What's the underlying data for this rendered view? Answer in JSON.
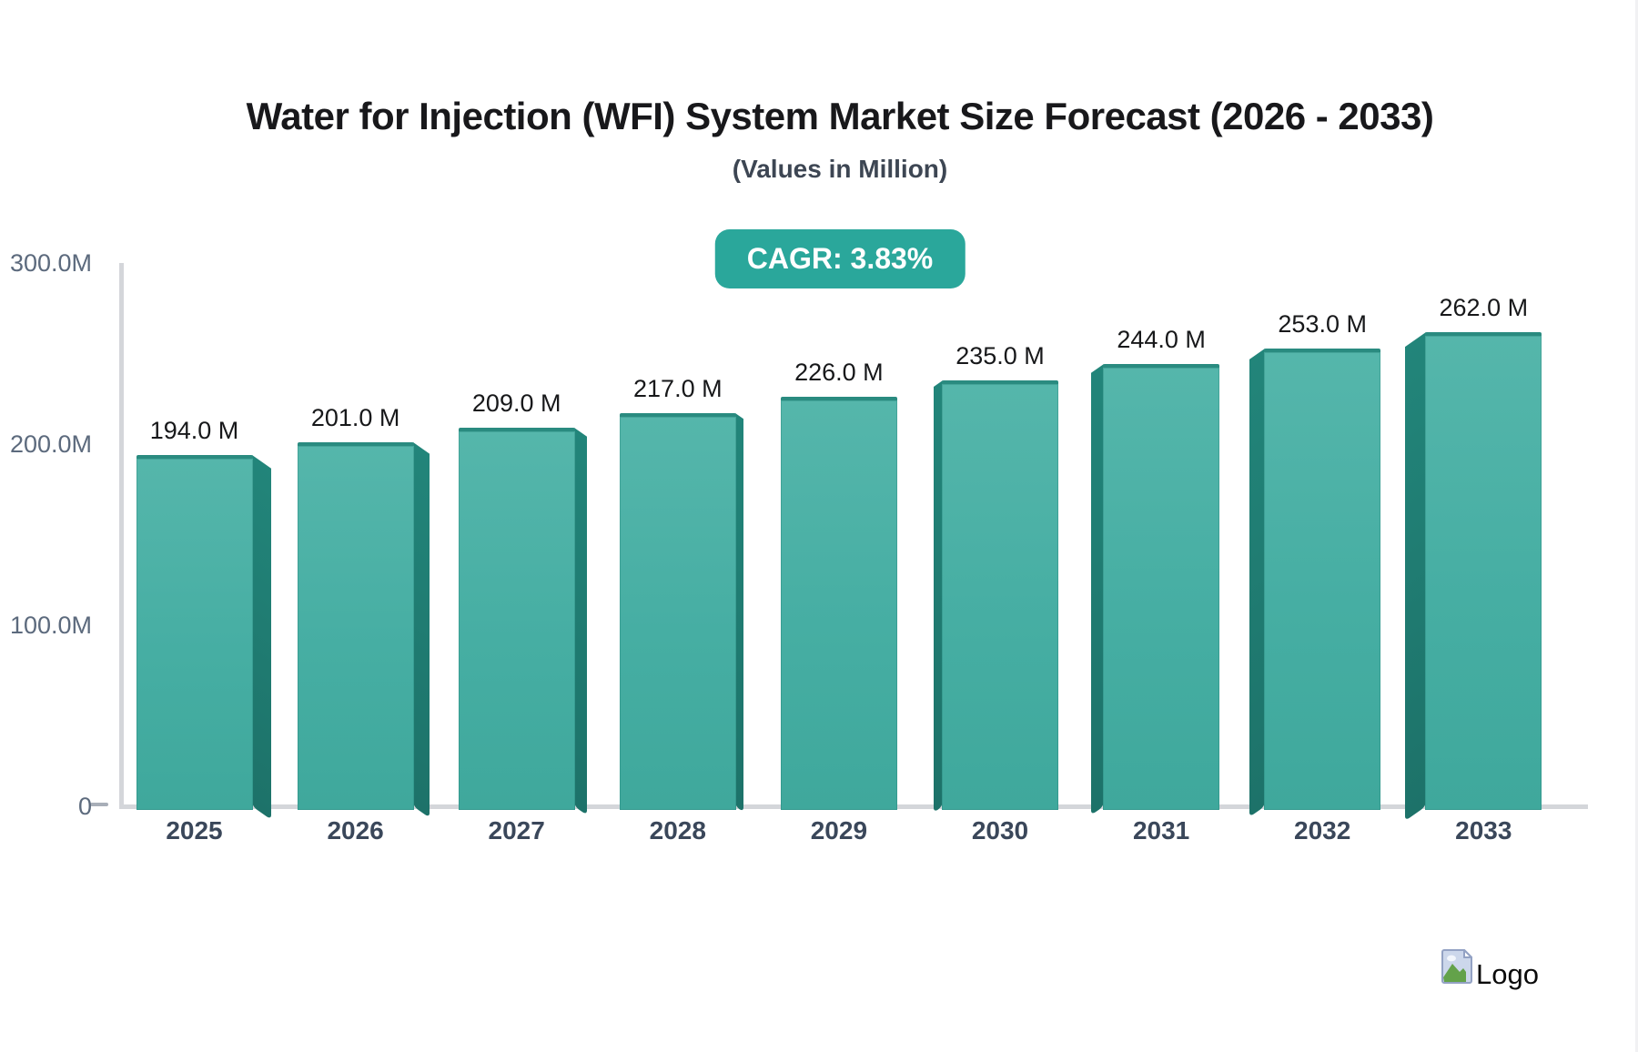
{
  "header": {
    "title": "Water for Injection (WFI) System Market Size Forecast (2026 - 2033)",
    "subtitle": "(Values in Million)",
    "cagr_badge": "CAGR: 3.83%"
  },
  "footer": {
    "logo_text": "Logo",
    "logo_icon": "broken-image-icon"
  },
  "colors": {
    "badge_bg": "#2aa79b",
    "bar_face_top": "#55b6ab",
    "bar_face_bottom": "#3fa89c",
    "bar_face_edge": "#2a8b80",
    "bar_side_top": "#22857a",
    "bar_side_bottom": "#1d7269",
    "axis_line": "#d4d6da",
    "tick": "#a8aeb8",
    "title_text": "#18181b",
    "subtitle_text": "#3d4653",
    "y_label_text": "#5c6a7d",
    "x_label_text": "#3a475a",
    "value_label_text": "#17181a"
  },
  "chart_data": {
    "type": "bar",
    "title": "Water for Injection (WFI) System Market Size Forecast (2026 - 2033)",
    "subtitle": "(Values in Million)",
    "annotation": "CAGR: 3.83%",
    "unit": "Million",
    "categories": [
      "2025",
      "2026",
      "2027",
      "2028",
      "2029",
      "2030",
      "2031",
      "2032",
      "2033"
    ],
    "values": [
      194,
      201,
      209,
      217,
      226,
      235,
      244,
      253,
      262
    ],
    "value_labels": [
      "194.0 M",
      "201.0 M",
      "209.0 M",
      "217.0 M",
      "226.0 M",
      "235.0 M",
      "244.0 M",
      "253.0 M",
      "262.0 M"
    ],
    "xlabel": "",
    "ylabel": "",
    "ylim": [
      0,
      300
    ],
    "yticks": [
      {
        "label": "300.0M",
        "value": 300
      },
      {
        "label": "200.0M",
        "value": 200
      },
      {
        "label": "100.0M",
        "value": 100
      },
      {
        "label": "0",
        "value": 0
      }
    ],
    "grid": false,
    "legend": "none"
  }
}
